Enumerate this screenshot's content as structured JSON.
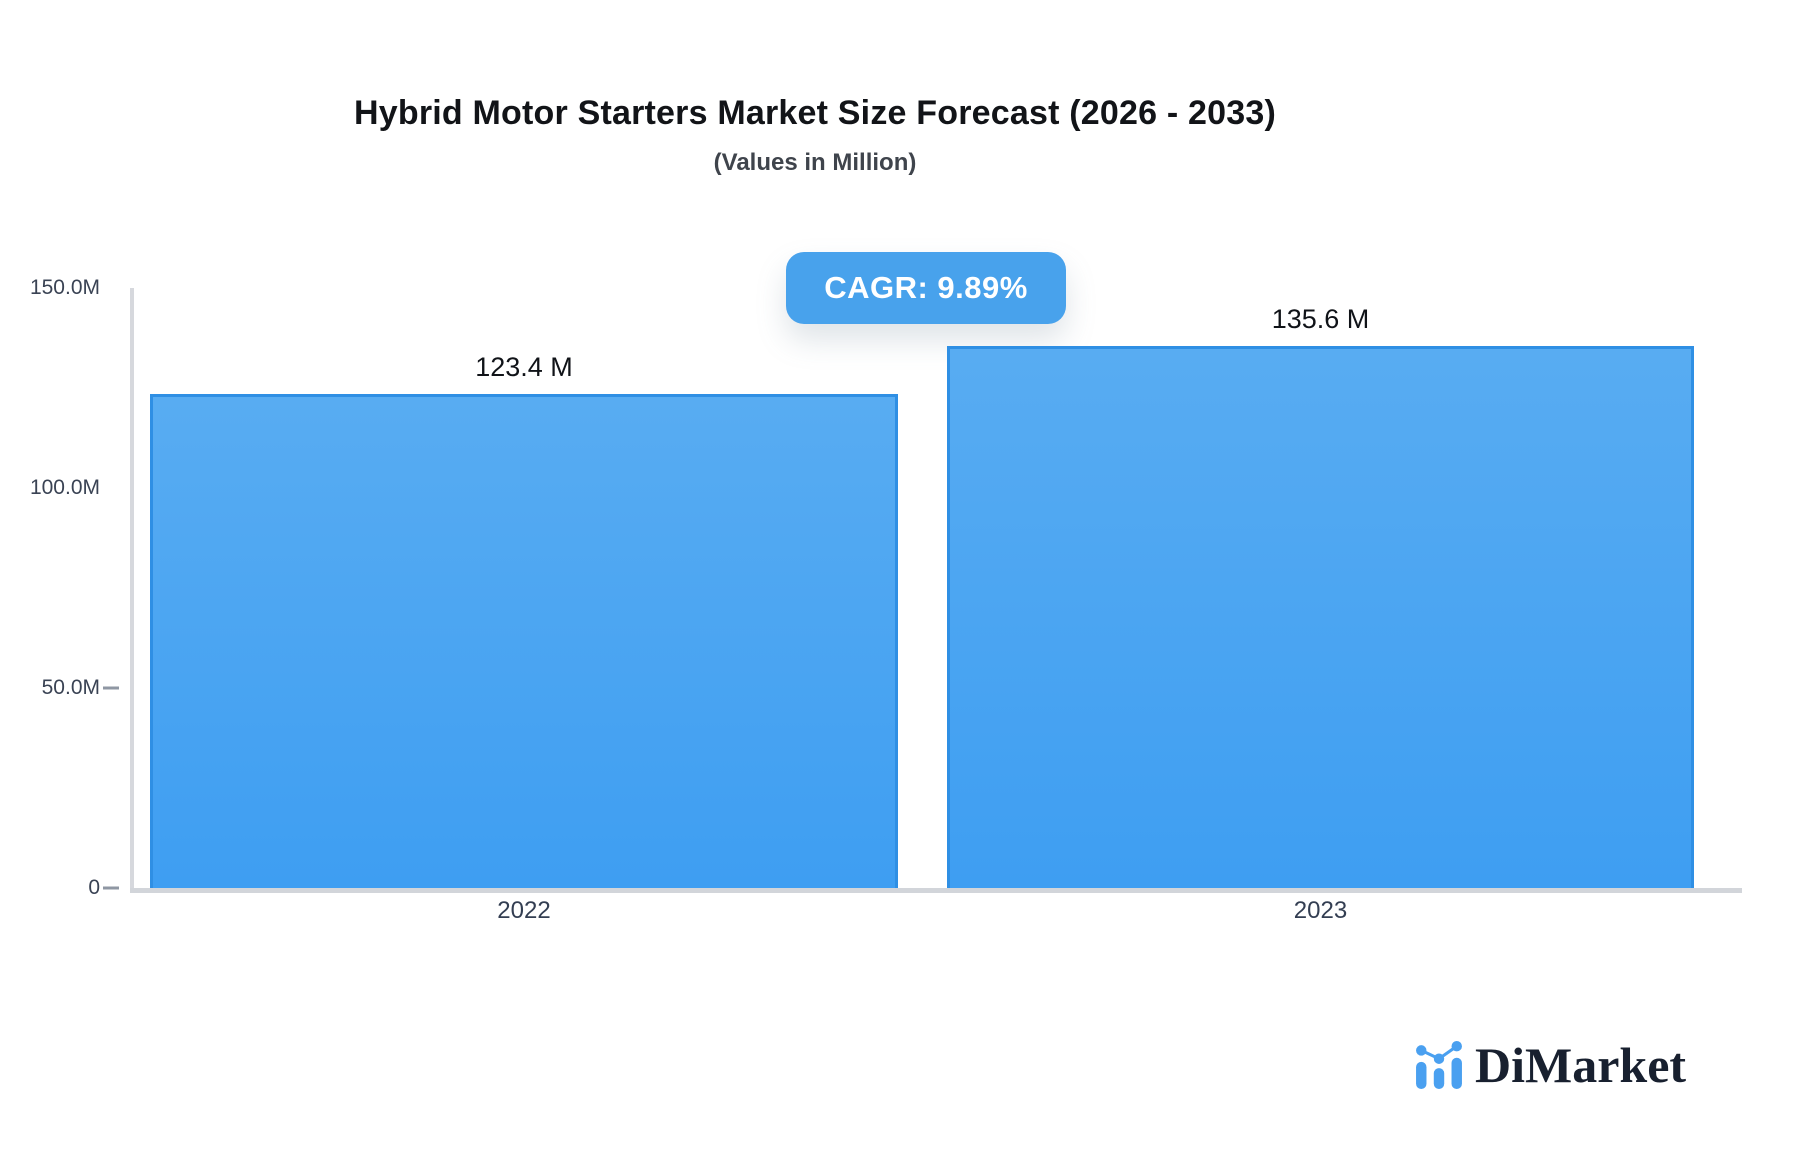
{
  "chart_data": {
    "type": "bar",
    "title": "Hybrid Motor Starters Market Size Forecast (2026 - 2033)",
    "subtitle": "(Values in Million)",
    "categories": [
      "2022",
      "2023"
    ],
    "values": [
      123.4,
      135.6
    ],
    "value_labels": [
      "123.4 M",
      "135.6 M"
    ],
    "ylabel_unit": "Million",
    "ylim": [
      0,
      150
    ],
    "y_ticks": [
      {
        "label": "150.0M",
        "value": 150,
        "dash": false
      },
      {
        "label": "100.0M",
        "value": 100,
        "dash": false
      },
      {
        "label": "50.0M",
        "value": 50,
        "dash": true
      },
      {
        "label": "0",
        "value": 0,
        "dash": true
      }
    ],
    "grid": false,
    "legend": "none",
    "bar_color_top": "#58acf2",
    "bar_color_bottom": "#3e9ef2",
    "bar_border_color": "#2f8fe4",
    "axis_line_color": "#d4d7dc"
  },
  "cagr_badge": {
    "text": "CAGR: 9.89%",
    "background_color": "#48a2ec",
    "text_color": "#ffffff"
  },
  "logo": {
    "text": "DiMarket",
    "icon": "dimarket-bars-icon",
    "text_color": "#18202f",
    "icon_color": "#4aa0f0"
  }
}
